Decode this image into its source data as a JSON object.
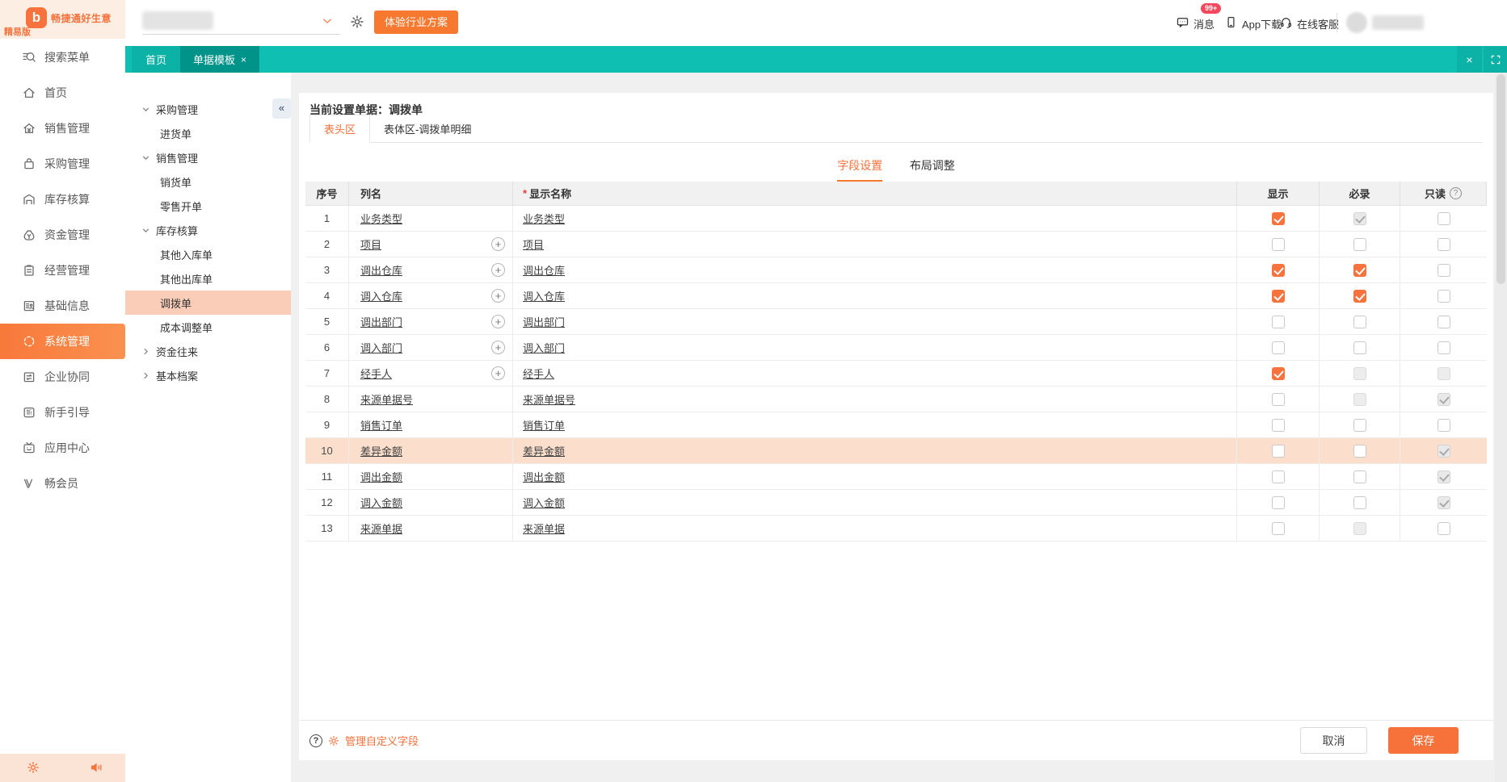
{
  "brand": {
    "name": "畅捷通好生意",
    "edition": "精易版",
    "logo_letter": "b"
  },
  "topbar": {
    "industry_button": "体验行业方案",
    "messages": "消息",
    "messages_badge": "99+",
    "app_download": "App下载",
    "online_service": "在线客服"
  },
  "tabbar": {
    "home_tab": "首页",
    "doc_template_tab": "单据模板",
    "close_glyph": "×"
  },
  "sidebar": {
    "items": [
      {
        "label": "搜索菜单",
        "icon": "search"
      },
      {
        "label": "首页",
        "icon": "home"
      },
      {
        "label": "销售管理",
        "icon": "sales"
      },
      {
        "label": "采购管理",
        "icon": "purchase"
      },
      {
        "label": "库存核算",
        "icon": "inventory"
      },
      {
        "label": "资金管理",
        "icon": "funds"
      },
      {
        "label": "经营管理",
        "icon": "operations"
      },
      {
        "label": "基础信息",
        "icon": "baseinfo"
      },
      {
        "label": "系统管理",
        "icon": "system",
        "active": true
      },
      {
        "label": "企业协同",
        "icon": "collab"
      },
      {
        "label": "新手引导",
        "icon": "guide"
      },
      {
        "label": "应用中心",
        "icon": "appcenter"
      },
      {
        "label": "畅会员",
        "icon": "member"
      }
    ]
  },
  "tree": {
    "collapse_glyph": "«",
    "items": [
      {
        "label": "采购管理",
        "type": "group",
        "state": "expanded"
      },
      {
        "label": "进货单",
        "type": "leaf"
      },
      {
        "label": "销售管理",
        "type": "group",
        "state": "expanded"
      },
      {
        "label": "销货单",
        "type": "leaf"
      },
      {
        "label": "零售开单",
        "type": "leaf"
      },
      {
        "label": "库存核算",
        "type": "group",
        "state": "expanded"
      },
      {
        "label": "其他入库单",
        "type": "leaf"
      },
      {
        "label": "其他出库单",
        "type": "leaf"
      },
      {
        "label": "调拨单",
        "type": "leaf",
        "active": true
      },
      {
        "label": "成本调整单",
        "type": "leaf"
      },
      {
        "label": "资金往来",
        "type": "group",
        "state": "collapsed"
      },
      {
        "label": "基本档案",
        "type": "group",
        "state": "collapsed"
      }
    ]
  },
  "main": {
    "current_doc_label": "当前设置单据：调拨单",
    "area_tabs": [
      {
        "label": "表头区",
        "active": true
      },
      {
        "label": "表体区-调拨单明细",
        "active": false
      }
    ],
    "setting_tabs": [
      {
        "label": "字段设置",
        "active": true
      },
      {
        "label": "布局调整",
        "active": false
      }
    ],
    "table": {
      "headers": {
        "no": "序号",
        "col_name": "列名",
        "display_name": "显示名称",
        "show": "显示",
        "required": "必录",
        "readonly": "只读"
      },
      "rows": [
        {
          "no": "1",
          "name": "业务类型",
          "display": "业务类型",
          "add": false,
          "highlight": false,
          "show": "checked",
          "required": "disabled-checked",
          "readonly": "unchecked"
        },
        {
          "no": "2",
          "name": "项目",
          "display": "项目",
          "add": true,
          "highlight": false,
          "show": "unchecked",
          "required": "unchecked",
          "readonly": "unchecked"
        },
        {
          "no": "3",
          "name": "调出仓库",
          "display": "调出仓库",
          "add": true,
          "highlight": false,
          "show": "checked",
          "required": "checked",
          "readonly": "unchecked"
        },
        {
          "no": "4",
          "name": "调入仓库",
          "display": "调入仓库",
          "add": true,
          "highlight": false,
          "show": "checked",
          "required": "checked",
          "readonly": "unchecked"
        },
        {
          "no": "5",
          "name": "调出部门",
          "display": "调出部门",
          "add": true,
          "highlight": false,
          "show": "unchecked",
          "required": "unchecked",
          "readonly": "unchecked"
        },
        {
          "no": "6",
          "name": "调入部门",
          "display": "调入部门",
          "add": true,
          "highlight": false,
          "show": "unchecked",
          "required": "unchecked",
          "readonly": "unchecked"
        },
        {
          "no": "7",
          "name": "经手人",
          "display": "经手人",
          "add": true,
          "highlight": false,
          "show": "checked",
          "required": "disabled-unchecked",
          "readonly": "disabled-unchecked"
        },
        {
          "no": "8",
          "name": "来源单据号",
          "display": "来源单据号",
          "add": false,
          "highlight": false,
          "show": "unchecked",
          "required": "disabled-unchecked",
          "readonly": "disabled-checked"
        },
        {
          "no": "9",
          "name": "销售订单",
          "display": "销售订单",
          "add": false,
          "highlight": false,
          "show": "unchecked",
          "required": "unchecked",
          "readonly": "unchecked"
        },
        {
          "no": "10",
          "name": "差异金额",
          "display": "差异金额",
          "add": false,
          "highlight": true,
          "show": "unchecked",
          "required": "unchecked",
          "readonly": "disabled-checked"
        },
        {
          "no": "11",
          "name": "调出金额",
          "display": "调出金额",
          "add": false,
          "highlight": false,
          "show": "unchecked",
          "required": "unchecked",
          "readonly": "disabled-checked"
        },
        {
          "no": "12",
          "name": "调入金额",
          "display": "调入金额",
          "add": false,
          "highlight": false,
          "show": "unchecked",
          "required": "unchecked",
          "readonly": "disabled-checked"
        },
        {
          "no": "13",
          "name": "来源单据",
          "display": "来源单据",
          "add": false,
          "highlight": false,
          "show": "unchecked",
          "required": "disabled-unchecked",
          "readonly": "unchecked"
        }
      ]
    },
    "footer": {
      "manage_link": "管理自定义字段",
      "cancel": "取消",
      "save": "保存"
    }
  },
  "colors": {
    "accent": "#f7723c",
    "teal_bar": "#0fbfb2",
    "teal_tab_active": "#00938a",
    "row_highlight": "#fbdfcc",
    "tree_highlight": "#f9cdb7",
    "badge_red": "#f4495d"
  }
}
